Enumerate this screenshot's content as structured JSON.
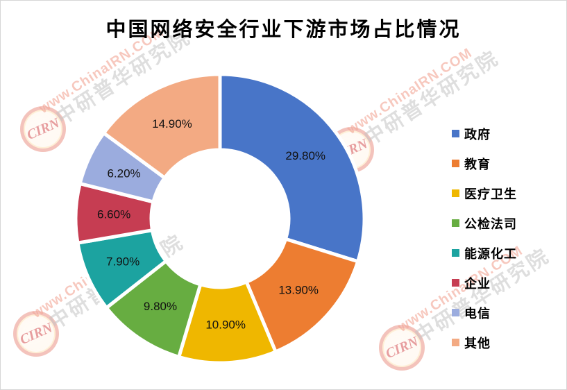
{
  "title": "中国网络安全行业下游市场占比情况",
  "watermark": {
    "logo_text": "CIRN",
    "line1": "www.ChinaIRN.COM",
    "line2": "中研普华研究院"
  },
  "chart_data": {
    "type": "pie",
    "subtype": "donut",
    "title": "中国网络安全行业下游市场占比情况",
    "categories": [
      "政府",
      "教育",
      "医疗卫生",
      "公检法司",
      "能源化工",
      "企业",
      "电信",
      "其他"
    ],
    "values": [
      29.8,
      13.9,
      10.9,
      9.8,
      7.9,
      6.6,
      6.2,
      14.9
    ],
    "labels": [
      "29.80%",
      "13.90%",
      "10.90%",
      "9.80%",
      "7.90%",
      "6.60%",
      "6.20%",
      "14.90%"
    ],
    "colors": [
      "#4875C8",
      "#ED7D31",
      "#EFB700",
      "#67AD41",
      "#1CA3A0",
      "#C63D52",
      "#9BACDE",
      "#F3AA83"
    ],
    "legend_position": "right",
    "start_angle_deg": 0,
    "direction": "clockwise",
    "donut_hole_ratio": 0.48,
    "label_format": "percent-2dp",
    "grid": false
  }
}
